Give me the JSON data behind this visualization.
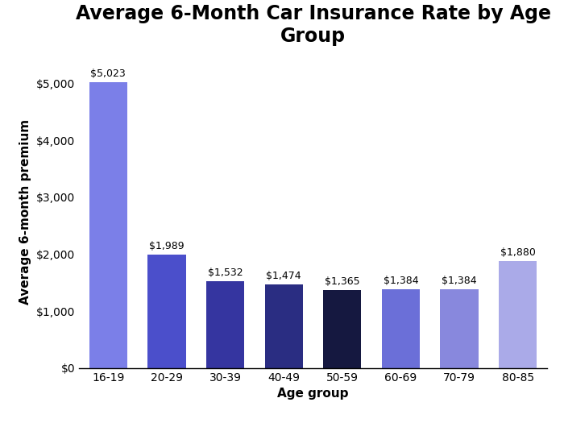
{
  "title": "Average 6-Month Car Insurance Rate by Age\nGroup",
  "xlabel": "Age group",
  "ylabel": "Average 6-month premium",
  "categories": [
    "16-19",
    "20-29",
    "30-39",
    "40-49",
    "50-59",
    "60-69",
    "70-79",
    "80-85"
  ],
  "values": [
    5023,
    1989,
    1532,
    1474,
    1365,
    1384,
    1384,
    1880
  ],
  "bar_colors": [
    "#7B7FE8",
    "#4B4FCB",
    "#3535A0",
    "#2A2D82",
    "#151840",
    "#6B6FD8",
    "#8888DD",
    "#AAAAE8"
  ],
  "ylim": [
    0,
    5500
  ],
  "yticks": [
    0,
    1000,
    2000,
    3000,
    4000,
    5000
  ],
  "title_fontsize": 17,
  "label_fontsize": 11,
  "tick_fontsize": 10,
  "annotation_fontsize": 9,
  "background_color": "#ffffff"
}
